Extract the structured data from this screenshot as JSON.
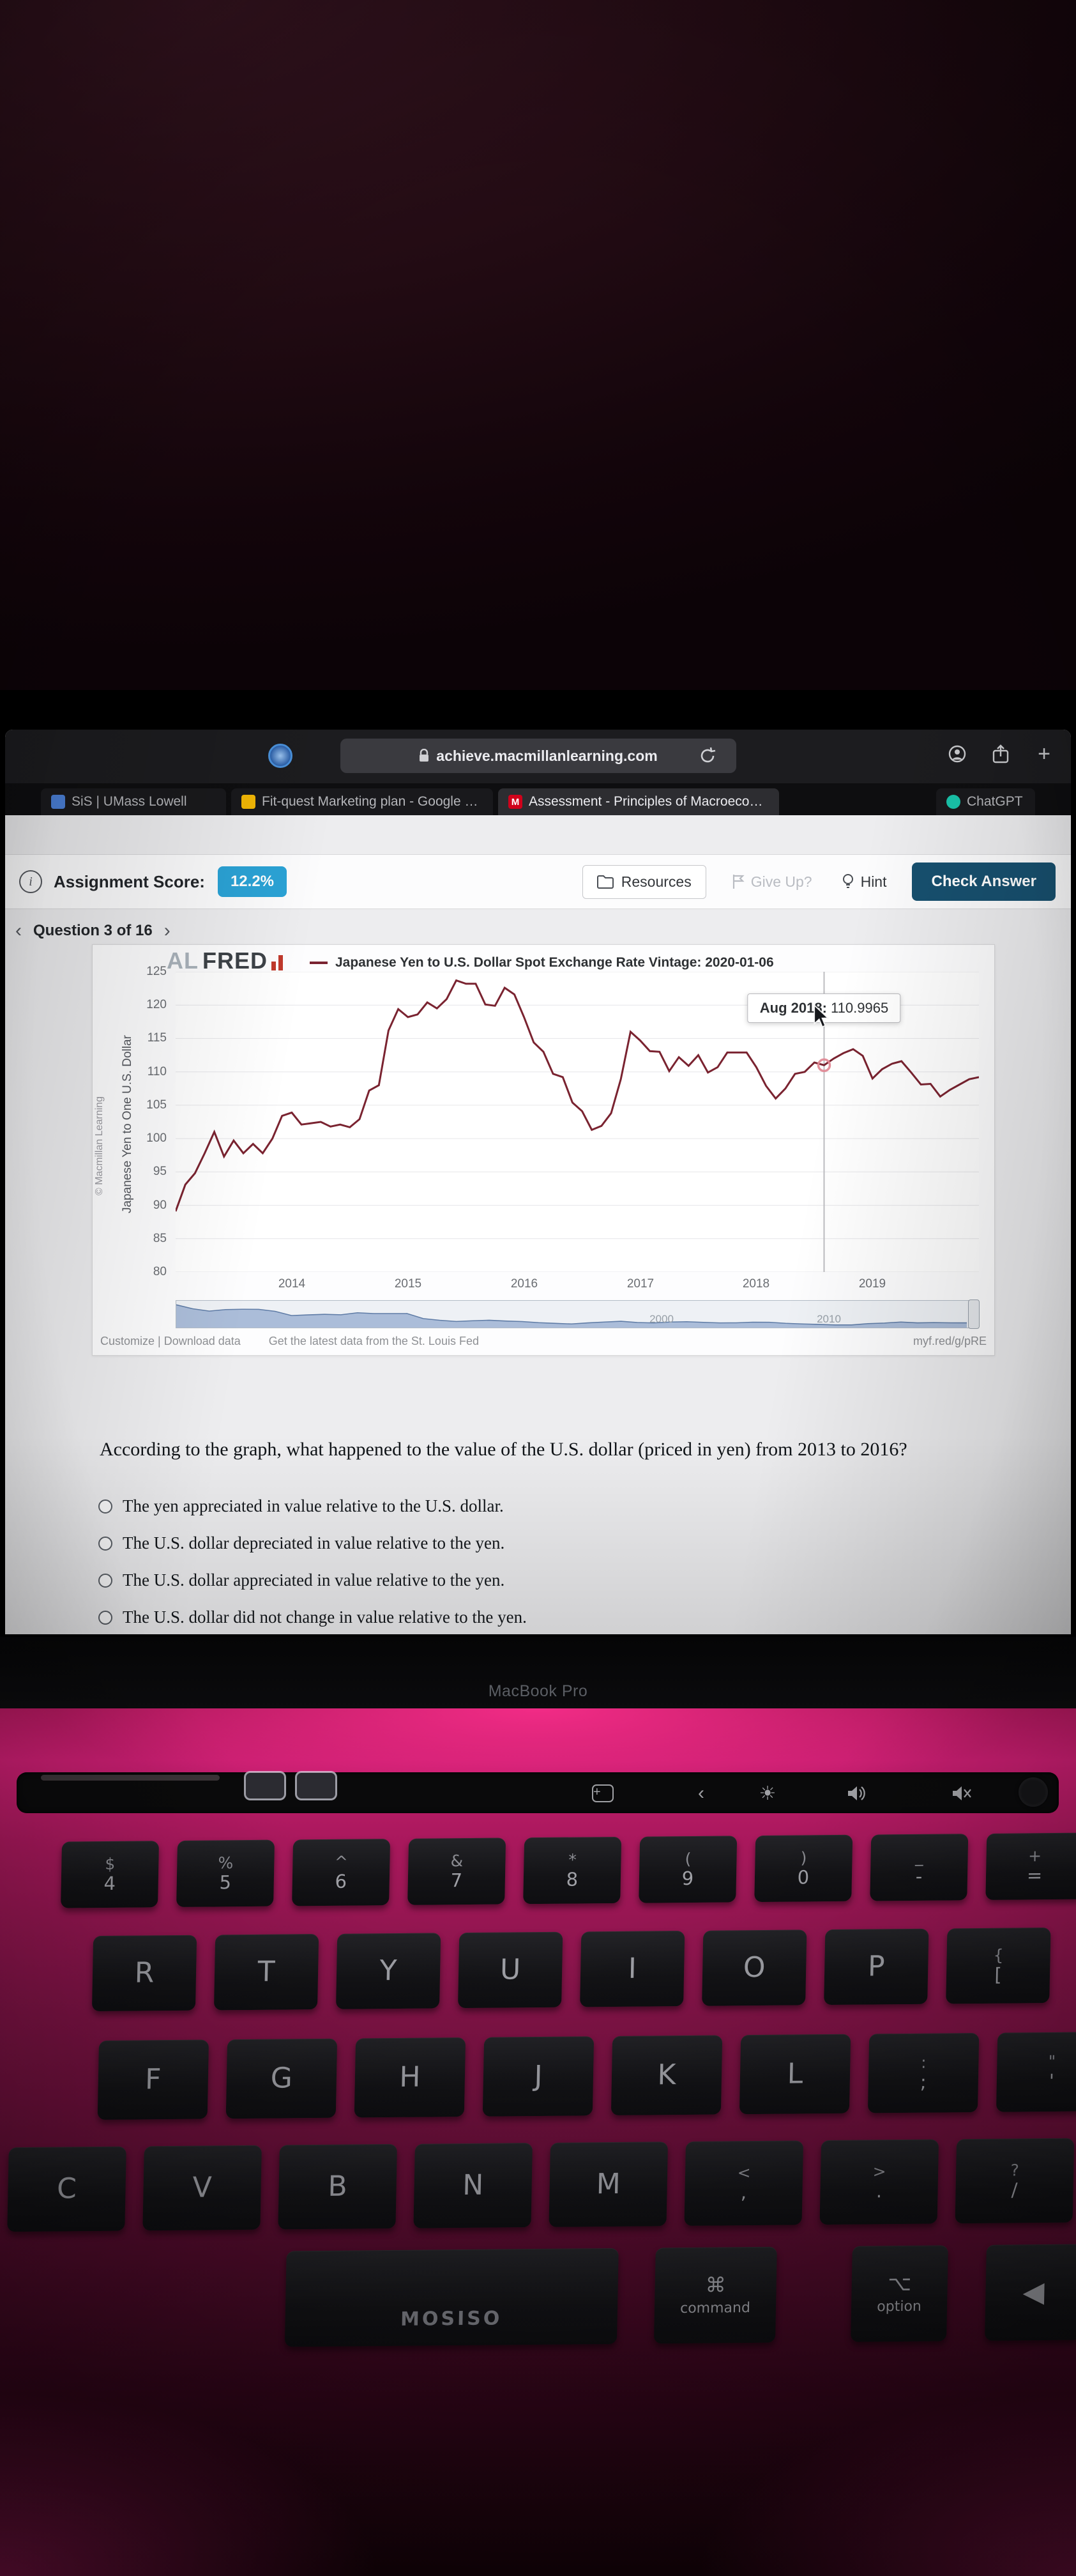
{
  "colors": {
    "score-badge": "#2ba3d6",
    "check-answer": "#17506f",
    "chart-line": "#7a2330",
    "mini-fill": "#9fb4d4",
    "mini-stroke": "#5f7ca6"
  },
  "browser": {
    "url": "achieve.macmillanlearning.com",
    "tabs": [
      {
        "label": "SiS | UMass Lowell",
        "icon": "sis-favicon",
        "color": "#4a7fd6",
        "active": false
      },
      {
        "label": "Fit-quest Marketing plan - Google Slides",
        "icon": "google-slides-favicon",
        "color": "#f2b705",
        "active": false
      },
      {
        "label": "Assessment - Principles of Macroecono...",
        "icon": "macmillan-favicon",
        "color": "#d0021b",
        "icon_letter": "M",
        "active": true
      },
      {
        "label": "ChatGPT",
        "icon": "chatgpt-favicon",
        "color": "#19c3aa",
        "active": false
      }
    ]
  },
  "assignment_bar": {
    "score_label": "Assignment Score:",
    "score_value": "12.2%",
    "resources": "Resources",
    "give_up": "Give Up?",
    "hint": "Hint",
    "check_answer": "Check Answer"
  },
  "question_nav": "Question 3 of 16",
  "alfred": {
    "brand_prefix": "AL",
    "brand_suffix": "FRED",
    "legend": "Japanese Yen to U.S. Dollar Spot Exchange Rate Vintage: 2020-01-06",
    "copyright": "© Macmillan Learning",
    "footer_links": "Customize | Download data",
    "footer_note": "Get the latest data from the St. Louis Fed",
    "footer_shortlink": "myf.red/g/pRE"
  },
  "chart_data": {
    "type": "line",
    "title": "Japanese Yen to U.S. Dollar Spot Exchange Rate Vintage: 2020-01-06",
    "ylabel": "Japanese Yen to One U.S. Dollar",
    "ylim": [
      80,
      125
    ],
    "yticks": [
      80,
      85,
      90,
      95,
      100,
      105,
      110,
      115,
      120,
      125
    ],
    "x_start": "2013-01",
    "x_end": "2019-12",
    "grid": true,
    "legend_position": "top",
    "x_ticks": [
      {
        "label": "2014",
        "index": 12
      },
      {
        "label": "2015",
        "index": 24
      },
      {
        "label": "2016",
        "index": 36
      },
      {
        "label": "2017",
        "index": 48
      },
      {
        "label": "2018",
        "index": 60
      },
      {
        "label": "2019",
        "index": 72
      }
    ],
    "series": [
      {
        "name": "Japanese Yen to U.S. Dollar Spot Exchange Rate",
        "values": [
          89.1,
          93.1,
          94.8,
          97.8,
          101.0,
          97.3,
          99.7,
          97.8,
          99.2,
          97.8,
          100.0,
          103.4,
          103.9,
          102.1,
          102.3,
          102.5,
          101.8,
          102.1,
          101.7,
          102.9,
          107.2,
          108.0,
          116.2,
          119.4,
          118.2,
          118.6,
          120.4,
          119.5,
          120.9,
          123.7,
          123.2,
          123.2,
          120.1,
          119.9,
          122.6,
          121.6,
          118.2,
          114.4,
          113.0,
          109.7,
          109.2,
          105.4,
          104.1,
          101.3,
          101.9,
          103.8,
          108.9,
          116.0,
          114.7,
          113.1,
          113.0,
          110.1,
          112.2,
          110.9,
          112.5,
          109.9,
          110.7,
          112.9,
          112.9,
          112.9,
          110.7,
          107.9,
          106.0,
          107.5,
          109.7,
          110.0,
          111.4,
          111.0,
          112.0,
          112.8,
          113.4,
          112.4,
          109.0,
          110.4,
          111.2,
          111.6,
          109.9,
          108.1,
          108.2,
          106.3,
          107.3,
          108.1,
          108.9,
          109.2
        ]
      }
    ],
    "annotation": {
      "index": 67,
      "label": "Aug 2018:",
      "value": 110.9965,
      "value_text": "110.9965"
    },
    "range_selector": {
      "x_start": 1971,
      "x_end": 2019,
      "values": [
        358,
        303,
        271,
        292,
        297,
        296,
        268,
        210,
        219,
        227,
        221,
        249,
        237,
        237,
        238,
        168,
        144,
        128,
        138,
        145,
        134,
        127,
        111,
        102,
        94,
        109,
        121,
        131,
        114,
        108,
        121,
        125,
        116,
        108,
        110,
        118,
        117,
        103,
        94,
        88,
        80,
        80,
        98,
        106,
        121,
        109,
        112,
        110,
        109
      ],
      "labels": [
        {
          "label": "2000",
          "pos": 0.604
        },
        {
          "label": "2010",
          "pos": 0.8125
        }
      ]
    }
  },
  "question": {
    "prompt": "According to the graph, what happened to the value of the U.S. dollar (priced in yen) from 2013 to 2016?",
    "options": [
      {
        "label": "The yen appreciated in value relative to the U.S. dollar.",
        "selected": false
      },
      {
        "label": "The U.S. dollar depreciated in value relative to the yen.",
        "selected": false
      },
      {
        "label": "The U.S. dollar appreciated in value relative to the yen.",
        "selected": false
      },
      {
        "label": "The U.S. dollar did not change in value relative to the yen.",
        "selected": false
      }
    ]
  },
  "laptop": {
    "bezel_brand": "MacBook Pro",
    "keyboard": {
      "rows": [
        [
          [
            "$",
            "4"
          ],
          [
            "%",
            "5"
          ],
          [
            "^",
            "6"
          ],
          [
            "&",
            "7"
          ],
          [
            "*",
            "8"
          ],
          [
            "(",
            "9"
          ],
          [
            ")",
            "0"
          ],
          [
            "_",
            "-"
          ],
          [
            "+",
            "="
          ]
        ],
        [
          "R",
          "T",
          "Y",
          "U",
          "I",
          "O",
          "P",
          [
            "{",
            "["
          ]
        ],
        [
          "F",
          "G",
          "H",
          "J",
          "K",
          "L",
          [
            ":",
            ";"
          ],
          [
            "\"",
            "'"
          ]
        ],
        [
          "C",
          "V",
          "B",
          "N",
          "M",
          [
            "<",
            ","
          ],
          [
            ">",
            "."
          ],
          [
            "?",
            "/"
          ]
        ]
      ],
      "space_brand": "MOSISO",
      "command_symbol": "⌘",
      "command_label": "command",
      "option_symbol": "⌥",
      "option_label": "option",
      "arrow_glyph": "◀"
    }
  }
}
